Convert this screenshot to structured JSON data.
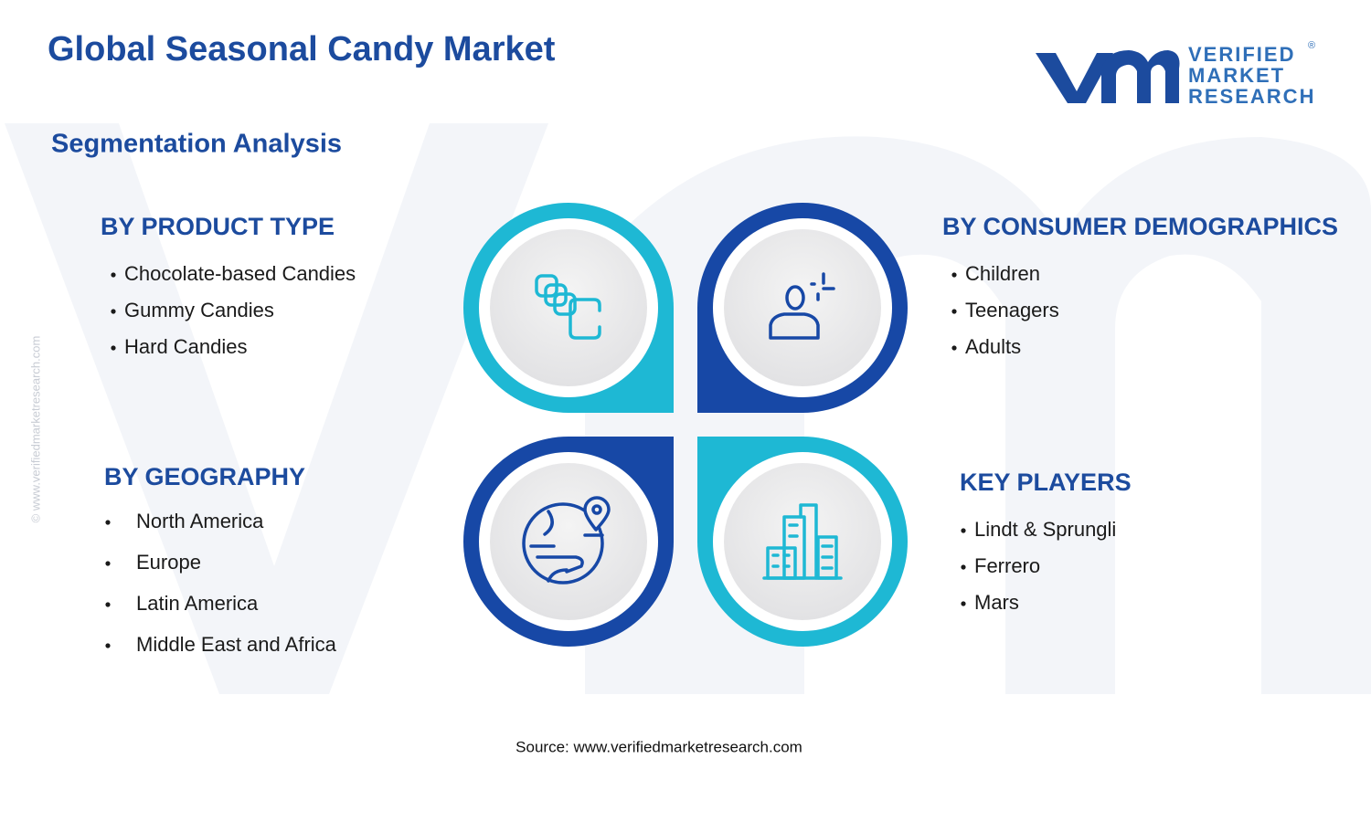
{
  "header": {
    "title": "Global Seasonal Candy Market",
    "subtitle": "Segmentation Analysis"
  },
  "logo": {
    "line1": "VERIFIED",
    "line2": "MARKET",
    "line3": "RESEARCH",
    "registered": "®"
  },
  "watermark": "© www.verifiedmarketresearch.com",
  "sections": [
    {
      "heading": "BY PRODUCT TYPE",
      "items": [
        "Chocolate-based Candies",
        "Gummy Candies",
        "Hard Candies"
      ]
    },
    {
      "heading": "BY CONSUMER DEMOGRAPHICS",
      "items": [
        "Children",
        "Teenagers",
        "Adults"
      ]
    },
    {
      "heading": "BY GEOGRAPHY",
      "items": [
        "North America",
        "Europe",
        "Latin America",
        "Middle East and Africa"
      ]
    },
    {
      "heading": "KEY PLAYERS",
      "items": [
        "Lindt & Sprungli",
        "Ferrero",
        "Mars"
      ]
    }
  ],
  "source": "Source: www.verifiedmarketresearch.com"
}
